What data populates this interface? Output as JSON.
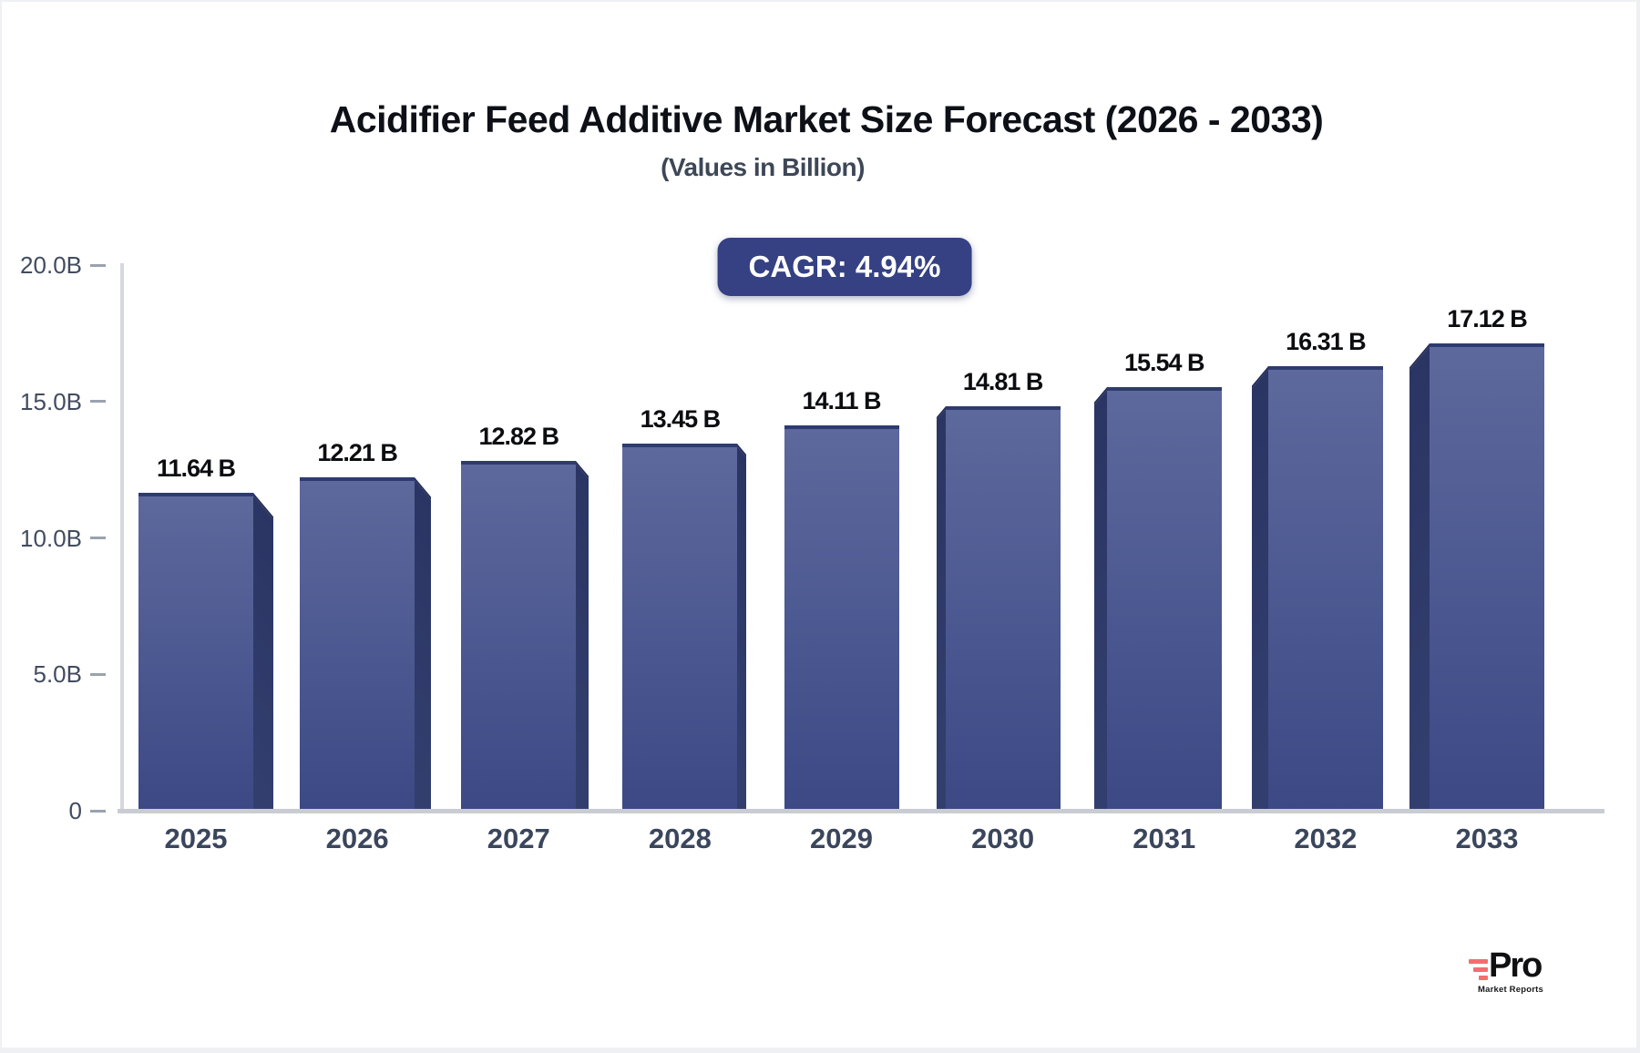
{
  "page": {
    "background": "#eef0f3",
    "card_background": "#ffffff"
  },
  "header": {
    "title": "Acidifier Feed Additive Market Size Forecast (2026 - 2033)",
    "subtitle": "(Values in Billion)",
    "cagr_badge": "CAGR: 4.94%"
  },
  "chart_data": {
    "type": "bar",
    "title": "Acidifier Feed Additive Market Size Forecast (2026 - 2033)",
    "subtitle": "(Values in Billion)",
    "cagr": "4.94%",
    "categories": [
      "2025",
      "2026",
      "2027",
      "2028",
      "2029",
      "2030",
      "2031",
      "2032",
      "2033"
    ],
    "values": [
      11.64,
      12.21,
      12.82,
      13.45,
      14.11,
      14.81,
      15.54,
      16.31,
      17.12
    ],
    "value_labels": [
      "11.64 B",
      "12.21 B",
      "12.82 B",
      "13.45 B",
      "14.11 B",
      "14.81 B",
      "15.54 B",
      "16.31 B",
      "17.12 B"
    ],
    "xlabel": "",
    "ylabel": "",
    "ylim": [
      0,
      20
    ],
    "y_ticks": [
      {
        "value": 0,
        "label": "0"
      },
      {
        "value": 5,
        "label": "5.0B"
      },
      {
        "value": 10,
        "label": "10.0B"
      },
      {
        "value": 15,
        "label": "15.0B"
      },
      {
        "value": 20,
        "label": "20.0B"
      }
    ],
    "grid": false,
    "legend": "none",
    "style": "3d-perspective-columns"
  },
  "colors": {
    "bar_top": "#5d699c",
    "bar_bottom": "#3c4985",
    "bar_side": "#2e3a6b",
    "bar_edge": "#2e3b70",
    "badge_background": "#354183",
    "badge_text": "#ffffff",
    "axis_line": "#d5d8de",
    "baseline": "#c9ccd3",
    "tick": "#9aa2ae",
    "axis_text": "#424c5f",
    "year_text": "#3a465c",
    "value_text": "#0c0d10",
    "logo_accent": "#f56d6d"
  },
  "logo": {
    "name": "Pro",
    "tagline": "Market Reports"
  }
}
